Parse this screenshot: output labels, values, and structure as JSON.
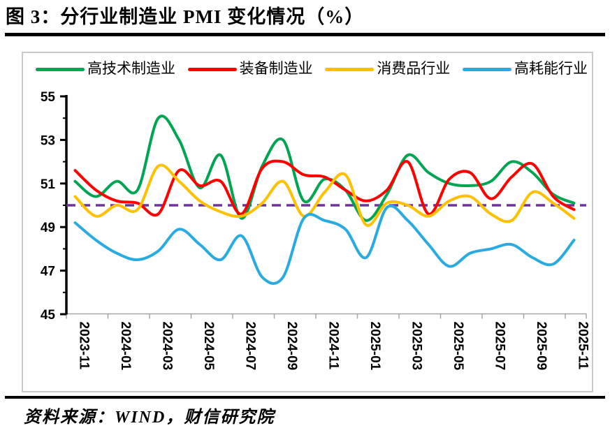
{
  "header": {
    "title": "图 3：分行业制造业 PMI 变化情况（%）"
  },
  "footer": {
    "source": "资料来源：WIND，财信研究院"
  },
  "chart_data": {
    "type": "line",
    "title": "分行业制造业PMI变化情况（%）",
    "xlabel": "",
    "ylabel": "",
    "ylim": [
      45,
      55
    ],
    "y_ticks": [
      45,
      47,
      49,
      51,
      53,
      55
    ],
    "y_minor_ticks": [
      46,
      48,
      50,
      52,
      54
    ],
    "grid": false,
    "legend_position": "top",
    "smoothed": true,
    "axis_color": "#a6a6a6",
    "y_axis_color": "#000000",
    "reference_line": {
      "value": 50,
      "color": "#7030a0",
      "style": "dashed"
    },
    "x": [
      "2023-11",
      "2023-12",
      "2024-01",
      "2024-02",
      "2024-03",
      "2024-04",
      "2024-05",
      "2024-06",
      "2024-07",
      "2024-08",
      "2024-09",
      "2024-10",
      "2024-11",
      "2024-12",
      "2025-01",
      "2025-02",
      "2025-03",
      "2025-04",
      "2025-05",
      "2025-06",
      "2025-07",
      "2025-08",
      "2025-09",
      "2025-10",
      "2025-11"
    ],
    "x_tick_labels": [
      "2023-11",
      "2024-01",
      "2024-03",
      "2024-05",
      "2024-07",
      "2024-09",
      "2024-11",
      "2025-01",
      "2025-03",
      "2025-05",
      "2025-07",
      "2025-09",
      "2025-11"
    ],
    "series": [
      {
        "name": "高技术制造业",
        "color": "#00a551",
        "values": [
          51.1,
          50.4,
          51.1,
          50.7,
          54.0,
          53.0,
          50.8,
          52.3,
          49.4,
          51.8,
          53.0,
          50.2,
          51.2,
          50.7,
          49.3,
          50.5,
          52.3,
          51.5,
          51.0,
          50.9,
          51.1,
          52.0,
          51.5,
          50.5,
          50.1
        ]
      },
      {
        "name": "装备制造业",
        "color": "#ff0000",
        "values": [
          51.6,
          50.7,
          50.2,
          50.1,
          49.6,
          51.6,
          50.9,
          51.1,
          49.6,
          51.7,
          52.0,
          51.4,
          51.3,
          50.7,
          50.2,
          50.7,
          52.0,
          49.6,
          51.2,
          51.5,
          50.3,
          51.3,
          51.9,
          50.4,
          49.8
        ]
      },
      {
        "name": "消费品行业",
        "color": "#ffc000",
        "values": [
          50.4,
          49.5,
          50.0,
          49.8,
          51.8,
          51.1,
          50.2,
          49.7,
          49.5,
          50.1,
          51.1,
          49.5,
          50.6,
          51.4,
          49.1,
          50.1,
          50.0,
          49.5,
          50.2,
          50.4,
          49.6,
          49.3,
          50.6,
          50.1,
          49.4
        ]
      },
      {
        "name": "高耗能行业",
        "color": "#29abe2",
        "values": [
          49.2,
          48.4,
          47.8,
          47.5,
          47.9,
          48.9,
          48.2,
          47.5,
          48.6,
          46.7,
          46.7,
          49.4,
          49.3,
          48.9,
          47.6,
          49.9,
          49.3,
          48.2,
          47.2,
          47.8,
          48.0,
          48.2,
          47.6,
          47.3,
          48.4
        ]
      }
    ]
  }
}
